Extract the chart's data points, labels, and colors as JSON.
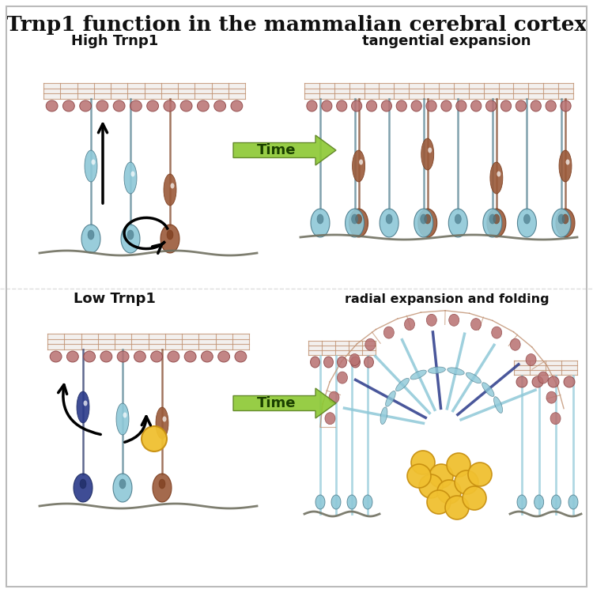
{
  "title": "Trnp1 function in the mammalian cerebral cortex",
  "title_fontsize": 19,
  "bg_color": "#ffffff",
  "border_color": "#bbbbbb",
  "label_high": "High Trnp1",
  "label_low": "Low Trnp1",
  "label_tang": "tangential expansion",
  "label_radial": "radial expansion and folding",
  "label_time": "Time",
  "arrow_green": "#8cc832",
  "arrow_green_light": "#d0e87a",
  "cell_blue": "#8ec8d8",
  "cell_blue_dark": "#5a8ca0",
  "cell_blue_outline": "#4a7a8a",
  "cell_dark_navy": "#2a3a8a",
  "cell_brown": "#9a5a3a",
  "cell_brown_outline": "#7a3a1a",
  "cell_pink": "#b87070",
  "cell_pink_outline": "#8a4040",
  "cell_yellow": "#f0c030",
  "cell_yellow_outline": "#c89010",
  "net_gray": "#b0a090",
  "net_brown": "#c09070",
  "ground_color": "#707060",
  "black": "#111111",
  "divider_color": "#dddddd"
}
